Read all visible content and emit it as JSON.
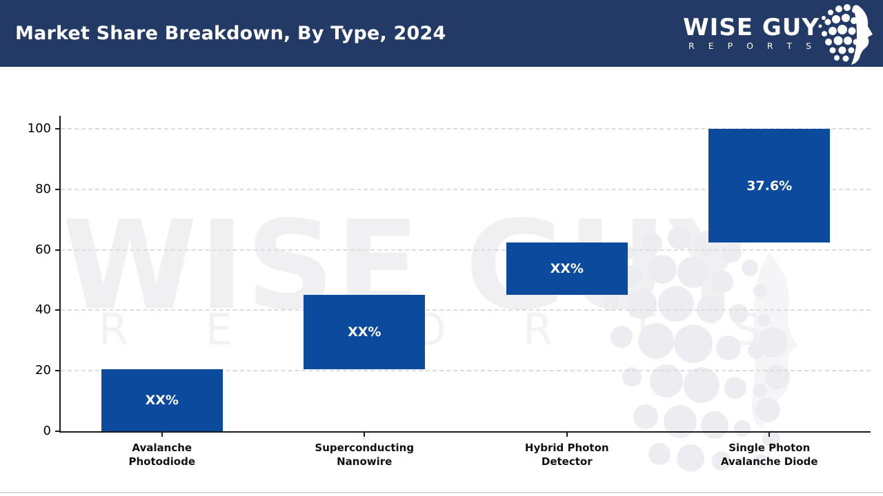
{
  "header": {
    "title": "Market Share Breakdown, By Type, 2024",
    "logo_primary": "WISE GUY",
    "logo_secondary": "R E P O R T S"
  },
  "watermark": {
    "primary": "WISE GUY",
    "secondary": "R E P O R T S"
  },
  "colors": {
    "header_bg": "#233a66",
    "bar_fill": "#0c4a9d",
    "bar_label_text": "#ffffff",
    "gridline": "#dcdcdc",
    "axis": "#1a1a1a",
    "tick_text": "#000000"
  },
  "chart_data": {
    "type": "bar",
    "subtype": "waterfall",
    "title": "Market Share Breakdown, By Type, 2024",
    "categories": [
      "Avalanche Photodiode",
      "Superconducting Nanowire",
      "Hybrid Photon Detector",
      "Single Photon Avalanche Diode"
    ],
    "category_lines": [
      [
        "Avalanche",
        "Photodiode"
      ],
      [
        "Superconducting",
        "Nanowire"
      ],
      [
        "Hybrid Photon",
        "Detector"
      ],
      [
        "Single Photon",
        "Avalanche Diode"
      ]
    ],
    "segments": [
      {
        "category": "Avalanche Photodiode",
        "start": 0,
        "end": 20.5,
        "value_label": "XX%"
      },
      {
        "category": "Superconducting Nanowire",
        "start": 20.5,
        "end": 45.0,
        "value_label": "XX%"
      },
      {
        "category": "Hybrid Photon Detector",
        "start": 45.0,
        "end": 62.4,
        "value_label": "XX%"
      },
      {
        "category": "Single Photon Avalanche Diode",
        "start": 62.4,
        "end": 100.0,
        "value_label": "37.6%"
      }
    ],
    "ylim": [
      0,
      100
    ],
    "yticks": [
      0,
      20,
      40,
      60,
      80,
      100
    ],
    "xlabel": "",
    "ylabel": "",
    "grid": "horizontal-dashed",
    "legend": "none"
  }
}
